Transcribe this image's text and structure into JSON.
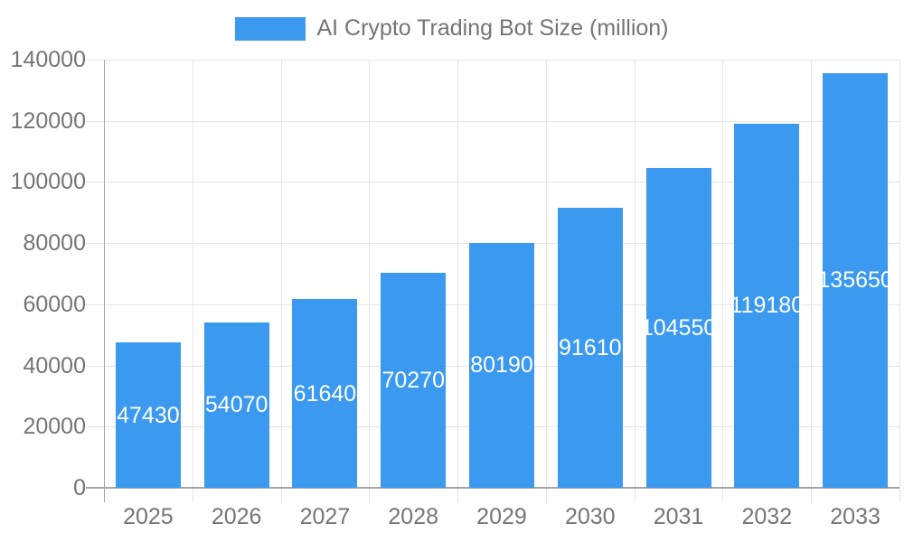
{
  "chart_data": {
    "type": "bar",
    "title": "AI Crypto Trading Bot Size (million)",
    "legend": {
      "position": "top",
      "label": "AI Crypto Trading Bot Size (million)"
    },
    "categories": [
      "2025",
      "2026",
      "2027",
      "2028",
      "2029",
      "2030",
      "2031",
      "2032",
      "2033"
    ],
    "values": [
      47430,
      54070,
      61640,
      70270,
      80190,
      91610,
      104550,
      119180,
      135650
    ],
    "value_labels": [
      "47430",
      "54070",
      "61640",
      "70270",
      "80190",
      "91610",
      "104550",
      "119180",
      "135650"
    ],
    "xlabel": "",
    "ylabel": "",
    "ylim": [
      0,
      140000
    ],
    "yticks": [
      0,
      20000,
      40000,
      60000,
      80000,
      100000,
      120000,
      140000
    ],
    "grid": true,
    "colors": {
      "bar": "#3b99f0",
      "axis_text": "#757575",
      "gridline": "#e6e6e6",
      "axis_line": "#a5a5a5",
      "value_label": "#ffffff",
      "background": "#ffffff"
    }
  }
}
